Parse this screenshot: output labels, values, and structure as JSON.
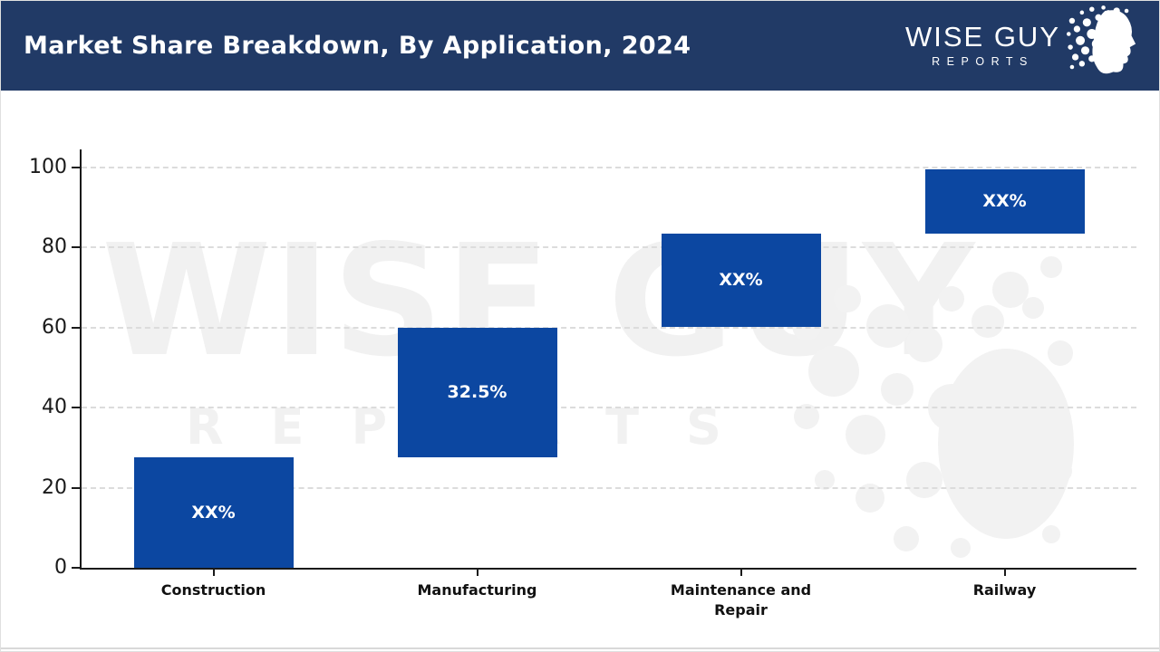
{
  "header": {
    "title": "Market Share Breakdown, By Application, 2024",
    "brand": {
      "name": "WISE GUY",
      "sub": "REPORTS"
    }
  },
  "watermark": {
    "line1": "WISE GUY",
    "line2": "REPORTS"
  },
  "colors": {
    "header_bg": "#213a66",
    "bar_blue": "#0c47a1",
    "watermark_gray": "#f1f1f1",
    "axis_black": "#1a1a1a",
    "grid_gray": "#dcdcdc"
  },
  "chart_data": {
    "type": "bar",
    "subtype": "waterfall-style market share breakdown",
    "title": "Market Share Breakdown, By Application, 2024",
    "categories": [
      "Construction",
      "Manufacturing",
      "Maintenance and Repair",
      "Railway"
    ],
    "segments": [
      {
        "category": "Construction",
        "start": 0,
        "end": 27.5,
        "label": "XX%"
      },
      {
        "category": "Manufacturing",
        "start": 27.5,
        "end": 60,
        "label": "32.5%"
      },
      {
        "category": "Maintenance and Repair",
        "start": 60,
        "end": 83.5,
        "label": "XX%"
      },
      {
        "category": "Railway",
        "start": 83.5,
        "end": 99.5,
        "label": "XX%"
      }
    ],
    "values": [
      27.5,
      32.5,
      23.5,
      16
    ],
    "bar_labels": [
      "XX%",
      "32.5%",
      "XX%",
      "XX%"
    ],
    "ylim": [
      0,
      100
    ],
    "yticks": [
      0,
      20,
      40,
      60,
      80,
      100
    ],
    "grid": "horizontal dashed",
    "legend": "none",
    "bar_color": "#0c47a1",
    "bar_label_color": "#ffffff"
  }
}
